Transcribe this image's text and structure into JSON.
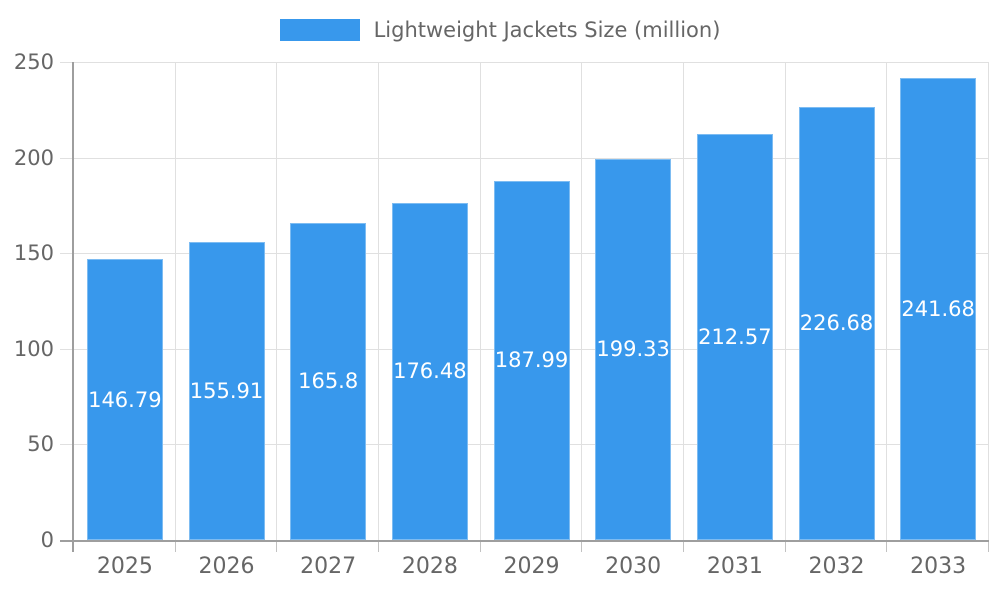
{
  "legend": {
    "label": "Lightweight Jackets Size (million)",
    "swatch_color": "#3898ec"
  },
  "chart_data": {
    "type": "bar",
    "title": "",
    "xlabel": "",
    "ylabel": "",
    "categories": [
      "2025",
      "2026",
      "2027",
      "2028",
      "2029",
      "2030",
      "2031",
      "2032",
      "2033"
    ],
    "series": [
      {
        "name": "Lightweight Jackets Size (million)",
        "values": [
          146.79,
          155.91,
          165.8,
          176.48,
          187.99,
          199.33,
          212.57,
          226.68,
          241.68
        ],
        "value_labels": [
          "146.79",
          "155.91",
          "165.8",
          "176.48",
          "187.99",
          "199.33",
          "212.57",
          "226.68",
          "241.68"
        ]
      }
    ],
    "ylim": [
      0,
      250
    ],
    "y_ticks": [
      0,
      50,
      100,
      150,
      200,
      250
    ],
    "y_tick_labels": [
      "0",
      "50",
      "100",
      "150",
      "200",
      "250"
    ],
    "grid": true,
    "legend_position": "top",
    "value_label_position": "center-of-bar"
  },
  "colors": {
    "bar": "#3898ec",
    "gridline": "#e0e0e0",
    "axis_line": "#9e9e9e",
    "tick": "#c2c2c2",
    "axis_text": "#666666",
    "value_text": "#ffffff",
    "background": "#ffffff"
  }
}
